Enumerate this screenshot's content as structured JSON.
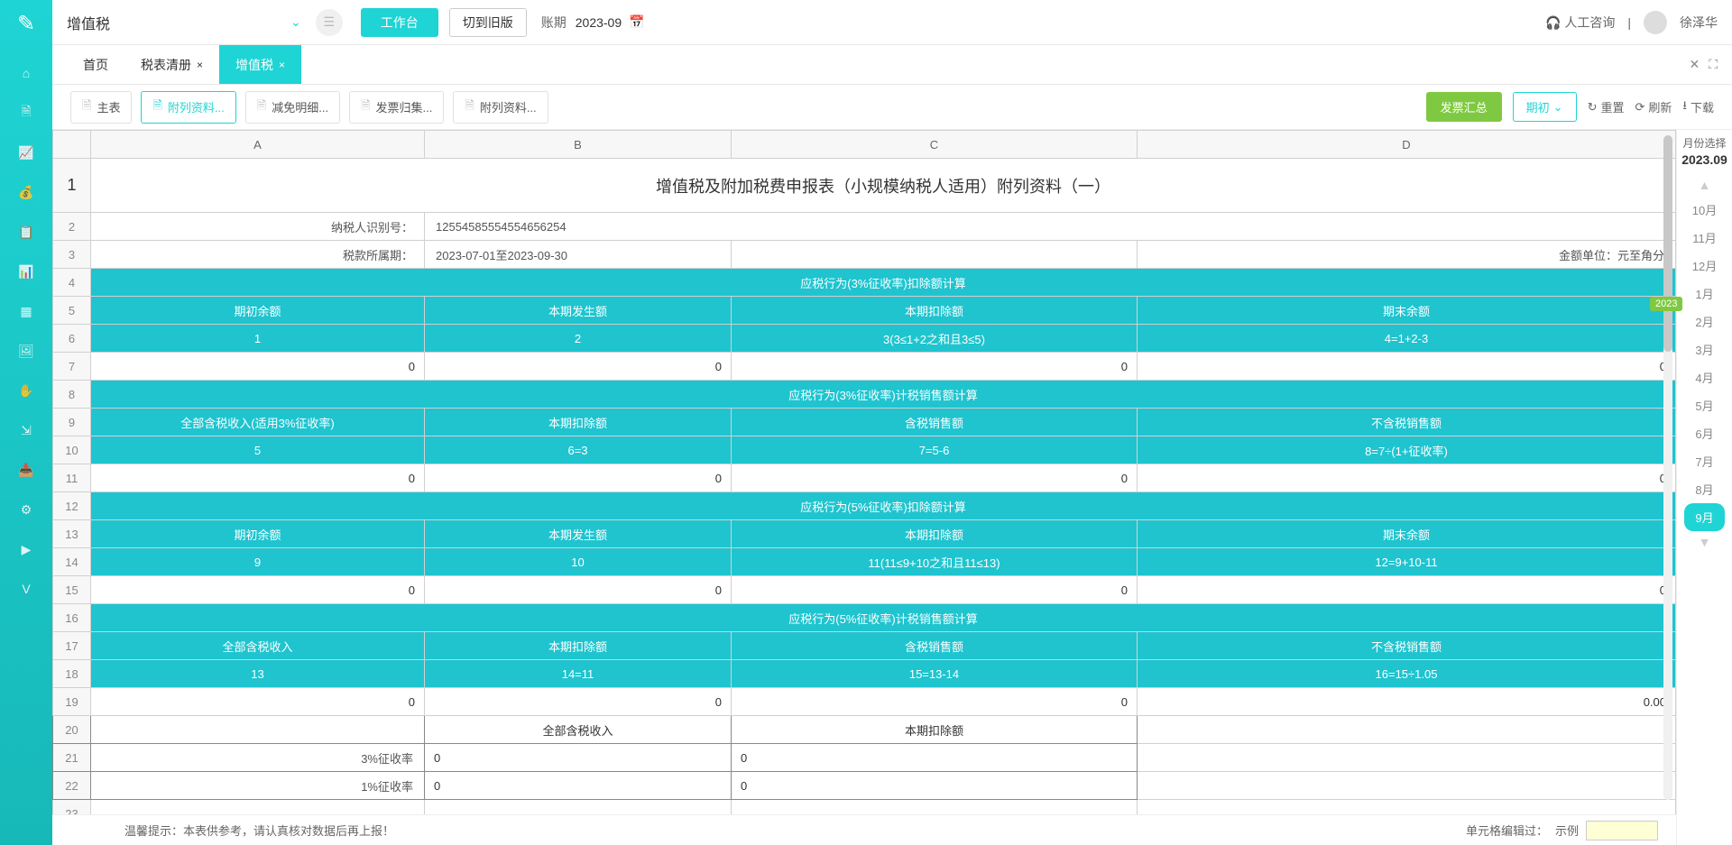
{
  "topbar": {
    "title": "增值税",
    "workbench": "工作台",
    "switch_old": "切到旧版",
    "period_label": "账期",
    "period_value": "2023-09",
    "consult": "人工咨询",
    "username": "徐泽华"
  },
  "tabs": {
    "home": "首页",
    "list": "税表清册",
    "vat": "增值税"
  },
  "subtabs": {
    "main": "主表",
    "attach": "附列资料...",
    "exempt": "减免明细...",
    "invoice": "发票归集...",
    "attach2": "附列资料..."
  },
  "toolbar": {
    "invoice_sum": "发票汇总",
    "init": "期初",
    "reset": "重置",
    "refresh": "刷新",
    "download": "下载"
  },
  "month_panel": {
    "title": "月份选择",
    "current": "2023.09",
    "year_tag": "2023",
    "months": [
      "10月",
      "11月",
      "12月",
      "1月",
      "2月",
      "3月",
      "4月",
      "5月",
      "6月",
      "7月",
      "8月",
      "9月"
    ]
  },
  "sheet": {
    "cols": [
      "A",
      "B",
      "C",
      "D"
    ],
    "title": "增值税及附加税费申报表（小规模纳税人适用）附列资料（一）",
    "taxpayer_id_label": "纳税人识别号：",
    "taxpayer_id": "12554585554554656254",
    "tax_period_label": "税款所属期：",
    "tax_period": "2023-07-01至2023-09-30",
    "unit_label": "金额单位：元至角分",
    "sec1_title": "应税行为(3%征收率)扣除额计算",
    "h1": [
      "期初余额",
      "本期发生额",
      "本期扣除额",
      "期末余额"
    ],
    "n1": [
      "1",
      "2",
      "3(3≤1+2之和且3≤5)",
      "4=1+2-3"
    ],
    "v1": [
      "0",
      "0",
      "0",
      "0"
    ],
    "sec2_title": "应税行为(3%征收率)计税销售额计算",
    "h2": [
      "全部含税收入(适用3%征收率)",
      "本期扣除额",
      "含税销售额",
      "不含税销售额"
    ],
    "n2": [
      "5",
      "6=3",
      "7=5-6",
      "8=7÷(1+征收率)"
    ],
    "v2": [
      "0",
      "0",
      "0",
      "0"
    ],
    "sec3_title": "应税行为(5%征收率)扣除额计算",
    "h3": [
      "期初余额",
      "本期发生额",
      "本期扣除额",
      "期末余额"
    ],
    "n3": [
      "9",
      "10",
      "11(11≤9+10之和且11≤13)",
      "12=9+10-11"
    ],
    "v3": [
      "0",
      "0",
      "0",
      "0"
    ],
    "sec4_title": "应税行为(5%征收率)计税销售额计算",
    "h4": [
      "全部含税收入",
      "本期扣除额",
      "含税销售额",
      "不含税销售额"
    ],
    "n4": [
      "13",
      "14=11",
      "15=13-14",
      "16=15÷1.05"
    ],
    "v4": [
      "0",
      "0",
      "0",
      "0.00"
    ],
    "sub_h": [
      "全部含税收入",
      "本期扣除额"
    ],
    "row21_label": "3%征收率",
    "row22_label": "1%征收率",
    "sub_vals": [
      "0",
      "0",
      "0",
      "0"
    ]
  },
  "footer": {
    "tip": "温馨提示：本表供参考，请认真核对数据后再上报！",
    "cell_edit": "单元格编辑过：",
    "example": "示例"
  },
  "colors": {
    "brand": "#1fd4d4",
    "green": "#7fc942",
    "band": "#1fc4cf"
  }
}
